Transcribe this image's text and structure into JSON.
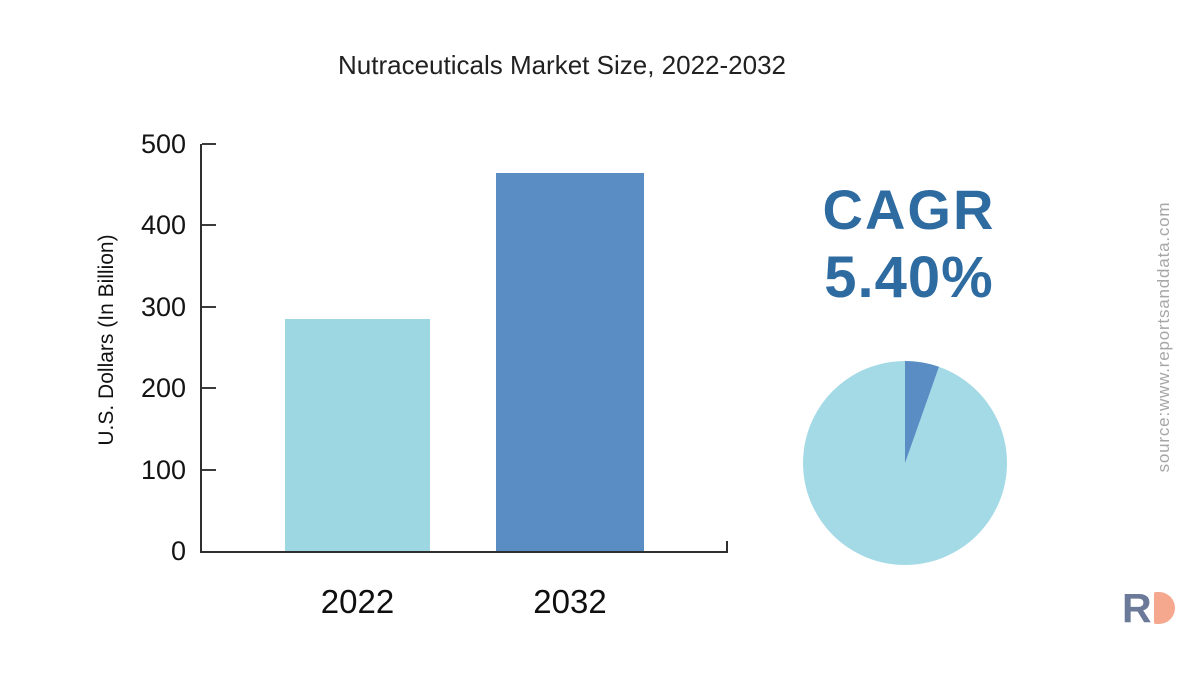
{
  "title": "Nutraceuticals Market Size, 2022-2032",
  "annotation": {
    "cagr_label": "CAGR",
    "cagr_value": "5.40%"
  },
  "source_note": "source:www.reportsanddata.com",
  "logo": {
    "letter": "R"
  },
  "colors": {
    "bar_2022": "#9cd7e2",
    "bar_2032": "#5b8dc5",
    "pie_main": "#a3dae6",
    "pie_slice": "#5b8dc5",
    "cagr_text": "#2e6ba1",
    "axis_text": "#141414",
    "source_text": "#a6a6a6",
    "logo_r": "#6b7a99",
    "logo_d": "#f5a88e"
  },
  "chart_data": [
    {
      "type": "bar",
      "title": "Nutraceuticals Market Size, 2022-2032",
      "categories": [
        "2022",
        "2032"
      ],
      "values": [
        285,
        465
      ],
      "xlabel": "",
      "ylabel": "U.S. Dollars (In Billion)",
      "ylim": [
        0,
        500
      ],
      "yticks": [
        0,
        100,
        200,
        300,
        400,
        500
      ],
      "grid": false,
      "legend": "none",
      "bar_colors": [
        "#9cd7e2",
        "#5b8dc5"
      ]
    },
    {
      "type": "pie",
      "description": "CAGR 5.40% share wedge, clockwise from 12 o'clock",
      "values": [
        5.4,
        94.6
      ],
      "colors": [
        "#5b8dc5",
        "#a3dae6"
      ],
      "start_angle_deg": 0,
      "direction": "clockwise"
    }
  ]
}
